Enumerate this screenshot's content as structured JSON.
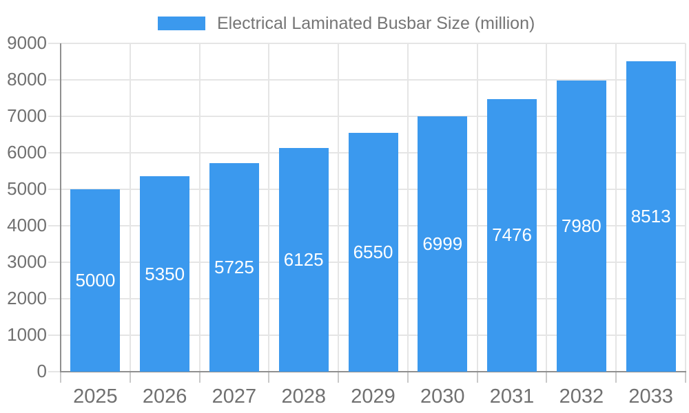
{
  "legend": {
    "label": "Electrical Laminated Busbar Size (million)"
  },
  "chart_data": {
    "type": "bar",
    "title": "Electrical Laminated Busbar Size (million)",
    "categories": [
      "2025",
      "2026",
      "2027",
      "2028",
      "2029",
      "2030",
      "2031",
      "2032",
      "2033"
    ],
    "values": [
      5000,
      5350,
      5725,
      6125,
      6550,
      6999,
      7476,
      7980,
      8513
    ],
    "bar_value_labels": [
      "5000",
      "5350",
      "5725",
      "6125",
      "6550",
      "6999",
      "7476",
      "7980",
      "8513"
    ],
    "xlabel": "",
    "ylabel": "",
    "ylim": [
      0,
      9000
    ],
    "yticks": [
      0,
      1000,
      2000,
      3000,
      4000,
      5000,
      6000,
      7000,
      8000,
      9000
    ],
    "ytick_labels": [
      "0",
      "1000",
      "2000",
      "3000",
      "4000",
      "5000",
      "6000",
      "7000",
      "8000",
      "9000"
    ],
    "grid": true,
    "legend_position": "top"
  },
  "colors": {
    "bar": "#3B99EE",
    "bar_value_text": "#FFFFFF",
    "axis_line": "#8F8F8F",
    "gridline": "#E5E5E5",
    "outer_tick": "#C9C9C9",
    "tick_label_text": "#707070",
    "legend_text": "#757575",
    "background": "#FFFFFF"
  }
}
